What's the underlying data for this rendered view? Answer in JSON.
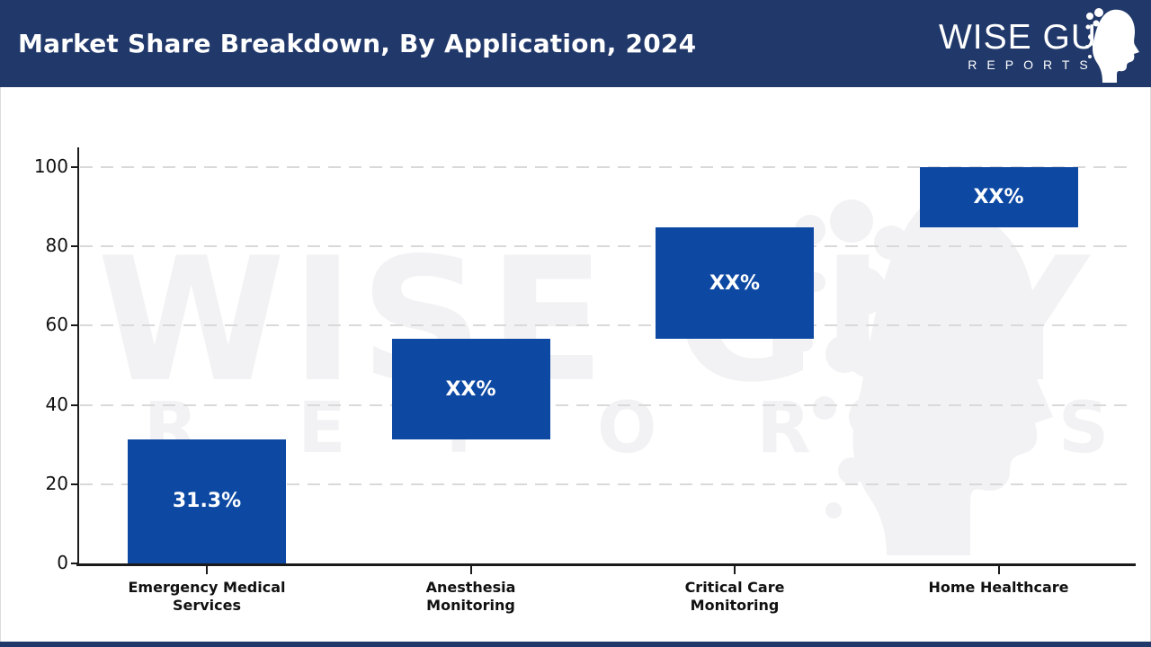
{
  "header": {
    "title": "Market Share Breakdown, By Application, 2024",
    "logo": {
      "brand_line1": "WISE GUY",
      "brand_line2": "REPORTS"
    }
  },
  "watermark": {
    "big_text": "WISE GUY",
    "small_text": "R E P O R T S"
  },
  "colors": {
    "header_navy": "#21386a",
    "bar_blue": "#0d49a3",
    "bar_label_white": "#ffffff",
    "gridline_gray": "#d9d9d9",
    "axis_black": "#1a1a1a",
    "watermark_gray": "#f2f2f4"
  },
  "chart_data": {
    "type": "bar",
    "subtype": "floating-waterfall",
    "title": "Market Share Breakdown, By Application, 2024",
    "categories": [
      "Emergency Medical Services",
      "Anesthesia Monitoring",
      "Critical Care Monitoring",
      "Home Healthcare"
    ],
    "category_lines": [
      [
        "Emergency Medical",
        "Services"
      ],
      [
        "Anesthesia",
        "Monitoring"
      ],
      [
        "Critical Care",
        "Monitoring"
      ],
      [
        "Home Healthcare"
      ]
    ],
    "segments": [
      {
        "category": "Emergency Medical Services",
        "start": 0,
        "end": 31.3,
        "label": "31.3%"
      },
      {
        "category": "Anesthesia Monitoring",
        "start": 31.3,
        "end": 56.6,
        "label": "XX%"
      },
      {
        "category": "Critical Care Monitoring",
        "start": 56.6,
        "end": 84.8,
        "label": "XX%"
      },
      {
        "category": "Home Healthcare",
        "start": 84.8,
        "end": 100,
        "label": "XX%"
      }
    ],
    "yticks": [
      0,
      20,
      40,
      60,
      80,
      100
    ],
    "ylim": [
      0,
      100
    ],
    "xlabel": "",
    "ylabel": "",
    "grid": "horizontal dashed",
    "legend": "none"
  }
}
